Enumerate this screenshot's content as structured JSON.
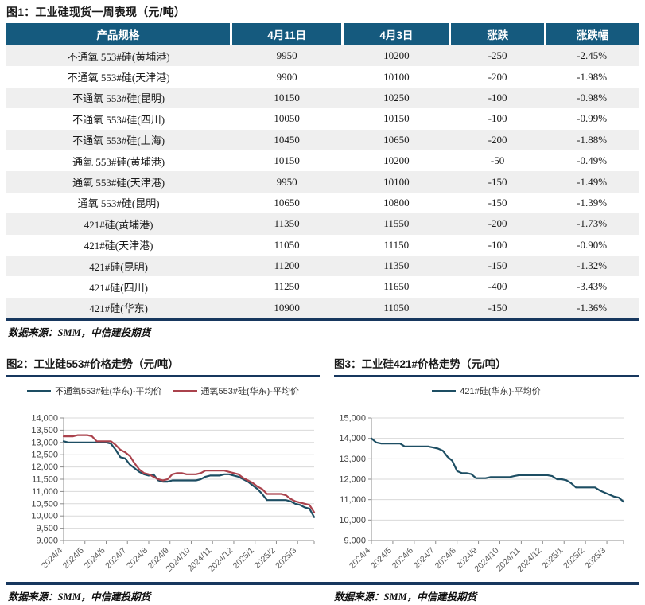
{
  "fig1": {
    "title": "图1：工业硅现货一周表现（元/吨）",
    "source_note": "数据来源：SMM，中信建投期货",
    "table": {
      "headers": [
        "产品规格",
        "4月11日",
        "4月3日",
        "涨跌",
        "涨跌幅"
      ],
      "col_widths_pct": [
        35.5,
        17.4,
        16.7,
        14.7,
        14.7
      ],
      "rows": [
        [
          "不通氧 553#硅(黄埔港)",
          "9950",
          "10200",
          "-250",
          "-2.45%"
        ],
        [
          "不通氧 553#硅(天津港)",
          "9900",
          "10100",
          "-200",
          "-1.98%"
        ],
        [
          "不通氧 553#硅(昆明)",
          "10150",
          "10250",
          "-100",
          "-0.98%"
        ],
        [
          "不通氧 553#硅(四川)",
          "10050",
          "10150",
          "-100",
          "-0.99%"
        ],
        [
          "不通氧 553#硅(上海)",
          "10450",
          "10650",
          "-200",
          "-1.88%"
        ],
        [
          "通氧 553#硅(黄埔港)",
          "10150",
          "10200",
          "-50",
          "-0.49%"
        ],
        [
          "通氧 553#硅(天津港)",
          "9950",
          "10100",
          "-150",
          "-1.49%"
        ],
        [
          "通氧 553#硅(昆明)",
          "10650",
          "10800",
          "-150",
          "-1.39%"
        ],
        [
          "421#硅(黄埔港)",
          "11350",
          "11550",
          "-200",
          "-1.73%"
        ],
        [
          "421#硅(天津港)",
          "11050",
          "11150",
          "-100",
          "-0.90%"
        ],
        [
          "421#硅(昆明)",
          "11200",
          "11350",
          "-150",
          "-1.32%"
        ],
        [
          "421#硅(四川)",
          "11250",
          "11650",
          "-400",
          "-3.43%"
        ],
        [
          "421#硅(华东)",
          "10900",
          "11050",
          "-150",
          "-1.36%"
        ]
      ]
    }
  },
  "fig2": {
    "title": "图2：工业硅553#价格走势（元/吨）",
    "source_note": "数据来源：SMM，中信建投期货"
  },
  "fig3": {
    "title": "图3：工业硅421#价格走势（元/吨）",
    "source_note": "数据来源：SMM，中信建投期货"
  },
  "colors": {
    "header_bg": "#155A7E",
    "divider": "#17375E",
    "row_alt": "#EFEFEF",
    "line_blue": "#1D4E63",
    "line_red": "#AA424C",
    "grid": "#D9D9D9",
    "axis": "#8C8C8C",
    "tick_label": "#595959",
    "y_label": "#404040"
  },
  "chart_data": [
    {
      "id": "fig2",
      "type": "line",
      "title": "图2：工业硅553#价格走势（元/吨）",
      "xlabel": "",
      "ylabel": "",
      "ylim": [
        9000,
        14000
      ],
      "ytick_step": 500,
      "grid": true,
      "legend_position": "top",
      "x_ticks": [
        "2024/4",
        "2024/5",
        "2024/6",
        "2024/7",
        "2024/8",
        "2024/9",
        "2024/10",
        "2024/11",
        "2024/12",
        "2025/1",
        "2025/2",
        "2025/3"
      ],
      "series": [
        {
          "name": "不通氧553#硅(华东)-平均价",
          "color": "#1D4E63",
          "values": [
            13050,
            13000,
            13000,
            13000,
            13000,
            13000,
            13000,
            13000,
            13000,
            13000,
            12950,
            12700,
            12400,
            12350,
            12100,
            11950,
            11800,
            11700,
            11650,
            11700,
            11450,
            11400,
            11400,
            11450,
            11450,
            11450,
            11450,
            11450,
            11450,
            11500,
            11600,
            11650,
            11650,
            11650,
            11700,
            11700,
            11650,
            11600,
            11500,
            11400,
            11250,
            11100,
            10900,
            10650,
            10650,
            10650,
            10650,
            10650,
            10600,
            10500,
            10450,
            10350,
            10300,
            9950
          ]
        },
        {
          "name": "通氧553#硅(华东)-平均价",
          "color": "#AA424C",
          "values": [
            13250,
            13250,
            13250,
            13300,
            13300,
            13300,
            13250,
            13050,
            13050,
            13050,
            13050,
            12900,
            12700,
            12600,
            12450,
            12150,
            11900,
            11750,
            11700,
            11600,
            11500,
            11450,
            11500,
            11700,
            11750,
            11750,
            11700,
            11700,
            11700,
            11750,
            11850,
            11850,
            11850,
            11850,
            11850,
            11800,
            11750,
            11700,
            11550,
            11450,
            11350,
            11200,
            11100,
            10900,
            10900,
            10900,
            10900,
            10850,
            10700,
            10600,
            10550,
            10500,
            10450,
            10150
          ]
        }
      ]
    },
    {
      "id": "fig3",
      "type": "line",
      "title": "图3：工业硅421#价格走势（元/吨）",
      "xlabel": "",
      "ylabel": "",
      "ylim": [
        9000,
        15000
      ],
      "ytick_step": 1000,
      "grid": true,
      "legend_position": "top",
      "x_ticks": [
        "2024/4",
        "2024/5",
        "2024/6",
        "2024/7",
        "2024/8",
        "2024/9",
        "2024/10",
        "2024/11",
        "2024/12",
        "2025/1",
        "2025/2",
        "2025/3"
      ],
      "series": [
        {
          "name": "421#硅(华东)-平均价",
          "color": "#1D4E63",
          "values": [
            14000,
            13800,
            13750,
            13750,
            13750,
            13750,
            13750,
            13600,
            13600,
            13600,
            13600,
            13600,
            13600,
            13550,
            13500,
            13400,
            13100,
            12900,
            12400,
            12300,
            12300,
            12250,
            12050,
            12050,
            12050,
            12100,
            12100,
            12100,
            12100,
            12100,
            12150,
            12200,
            12200,
            12200,
            12200,
            12200,
            12200,
            12200,
            12150,
            12000,
            12000,
            11950,
            11800,
            11600,
            11600,
            11600,
            11600,
            11600,
            11450,
            11350,
            11250,
            11150,
            11100,
            10900
          ]
        }
      ]
    }
  ]
}
